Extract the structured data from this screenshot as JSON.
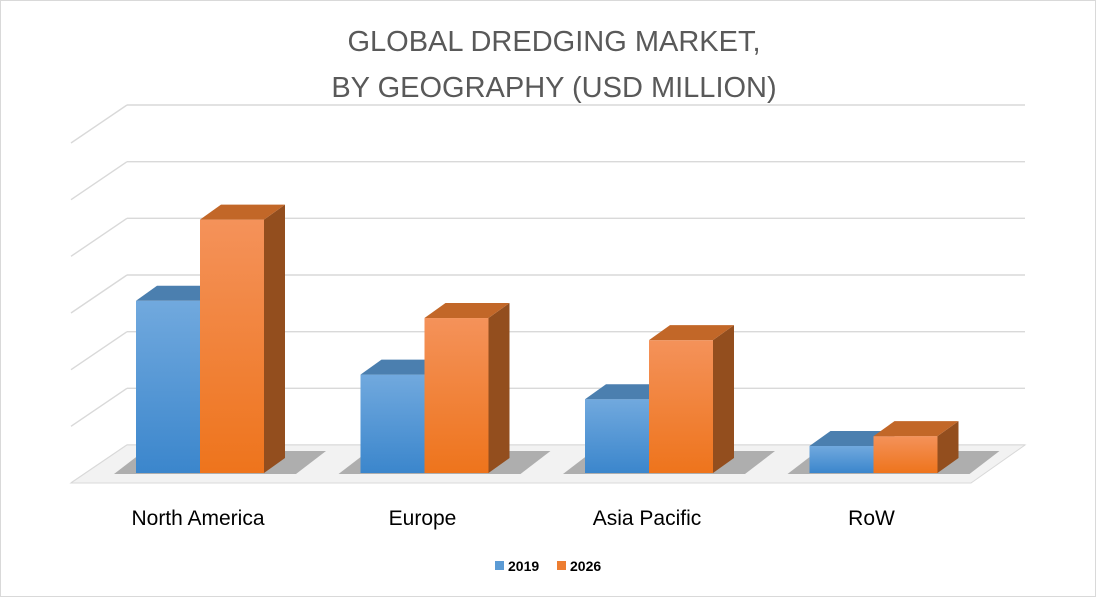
{
  "chart_data": {
    "type": "bar",
    "title": "GLOBAL DREDGING MARKET, BY GEOGRAPHY (USD MILLION)",
    "title_lines": [
      "GLOBAL DREDGING MARKET,",
      "BY GEOGRAPHY (USD MILLION)"
    ],
    "categories": [
      "North America",
      "Europe",
      "Asia Pacific",
      "RoW"
    ],
    "series": [
      {
        "name": "2019",
        "values": [
          3.5,
          2.0,
          1.5,
          0.55
        ],
        "color": "#5b9bd5"
      },
      {
        "name": "2026",
        "values": [
          5.15,
          3.15,
          2.7,
          0.75
        ],
        "color": "#ed7d31"
      }
    ],
    "ylim": [
      0,
      6.6
    ],
    "y_tick_count": 6,
    "y_tick_labels_visible": false,
    "grid": true,
    "style": "3d-clustered-column",
    "legend": "bottom"
  }
}
